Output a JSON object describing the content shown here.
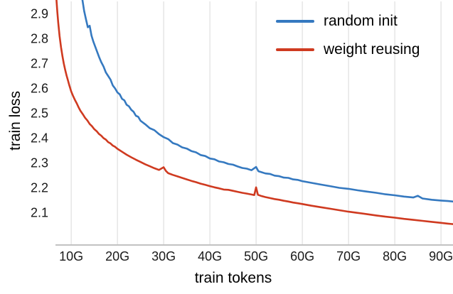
{
  "chart_data": {
    "type": "line",
    "title": "",
    "xlabel": "train tokens",
    "ylabel": "train loss",
    "xlim": [
      6.6,
      92.6
    ],
    "ylim": [
      1.97,
      2.95
    ],
    "grid": "vertical-only",
    "legend_position": "top-right-inside",
    "x_ticks": {
      "values": [
        10,
        20,
        30,
        40,
        50,
        60,
        70,
        80,
        90
      ],
      "labels": [
        "10G",
        "20G",
        "30G",
        "40G",
        "50G",
        "60G",
        "70G",
        "80G",
        "90G"
      ]
    },
    "y_ticks": {
      "values": [
        2.1,
        2.2,
        2.3,
        2.4,
        2.5,
        2.6,
        2.7,
        2.8,
        2.9
      ],
      "labels": [
        "2.1",
        "2.2",
        "2.3",
        "2.4",
        "2.5",
        "2.6",
        "2.7",
        "2.8",
        "2.9"
      ]
    },
    "colors": {
      "grid": "#d9d9d9",
      "axis": "#c2c2c2",
      "tick_text": "#1a1a1a",
      "blue": "#3579c0",
      "red": "#cf3a20"
    },
    "series": [
      {
        "name": "random init",
        "color": "#3579c0",
        "points": [
          [
            12.4,
            2.96
          ],
          [
            12.8,
            2.912
          ],
          [
            13.2,
            2.878
          ],
          [
            13.6,
            2.846
          ],
          [
            14.0,
            2.852
          ],
          [
            14.4,
            2.812
          ],
          [
            14.8,
            2.788
          ],
          [
            15.2,
            2.768
          ],
          [
            15.6,
            2.748
          ],
          [
            16.0,
            2.728
          ],
          [
            16.5,
            2.706
          ],
          [
            17.0,
            2.688
          ],
          [
            17.5,
            2.664
          ],
          [
            18.0,
            2.65
          ],
          [
            18.5,
            2.636
          ],
          [
            19.0,
            2.612
          ],
          [
            19.5,
            2.6
          ],
          [
            20.0,
            2.584
          ],
          [
            20.5,
            2.576
          ],
          [
            21.0,
            2.558
          ],
          [
            21.5,
            2.552
          ],
          [
            22.0,
            2.534
          ],
          [
            22.5,
            2.528
          ],
          [
            23.0,
            2.514
          ],
          [
            23.5,
            2.506
          ],
          [
            24.0,
            2.49
          ],
          [
            24.5,
            2.486
          ],
          [
            25.0,
            2.47
          ],
          [
            26.0,
            2.456
          ],
          [
            27.0,
            2.44
          ],
          [
            28.0,
            2.432
          ],
          [
            29.0,
            2.416
          ],
          [
            30.0,
            2.404
          ],
          [
            31.0,
            2.396
          ],
          [
            32.0,
            2.38
          ],
          [
            33.0,
            2.374
          ],
          [
            34.0,
            2.363
          ],
          [
            35.0,
            2.358
          ],
          [
            36.0,
            2.348
          ],
          [
            37.0,
            2.343
          ],
          [
            38.0,
            2.332
          ],
          [
            39.0,
            2.328
          ],
          [
            40.0,
            2.318
          ],
          [
            41.0,
            2.315
          ],
          [
            42.0,
            2.306
          ],
          [
            43.0,
            2.303
          ],
          [
            44.0,
            2.296
          ],
          [
            45.0,
            2.293
          ],
          [
            46.0,
            2.286
          ],
          [
            47.0,
            2.28
          ],
          [
            48.0,
            2.277
          ],
          [
            49.0,
            2.271
          ],
          [
            50.0,
            2.284
          ],
          [
            50.5,
            2.267
          ],
          [
            51.0,
            2.264
          ],
          [
            52.0,
            2.258
          ],
          [
            53.0,
            2.256
          ],
          [
            54.0,
            2.249
          ],
          [
            55.0,
            2.247
          ],
          [
            56.0,
            2.241
          ],
          [
            57.0,
            2.24
          ],
          [
            58.0,
            2.234
          ],
          [
            59.0,
            2.232
          ],
          [
            60.0,
            2.227
          ],
          [
            62.0,
            2.22
          ],
          [
            64.0,
            2.213
          ],
          [
            66.0,
            2.207
          ],
          [
            68.0,
            2.2
          ],
          [
            70.0,
            2.196
          ],
          [
            72.0,
            2.19
          ],
          [
            74.0,
            2.185
          ],
          [
            76.0,
            2.18
          ],
          [
            78.0,
            2.174
          ],
          [
            80.0,
            2.17
          ],
          [
            82.0,
            2.165
          ],
          [
            84.0,
            2.161
          ],
          [
            85.0,
            2.168
          ],
          [
            86.0,
            2.157
          ],
          [
            88.0,
            2.152
          ],
          [
            90.0,
            2.149
          ],
          [
            91.5,
            2.147
          ],
          [
            92.6,
            2.145
          ]
        ]
      },
      {
        "name": "weight reusing",
        "color": "#cf3a20",
        "points": [
          [
            6.8,
            2.96
          ],
          [
            7.0,
            2.908
          ],
          [
            7.2,
            2.864
          ],
          [
            7.5,
            2.81
          ],
          [
            7.8,
            2.766
          ],
          [
            8.1,
            2.73
          ],
          [
            8.4,
            2.7
          ],
          [
            8.7,
            2.674
          ],
          [
            9.0,
            2.652
          ],
          [
            9.3,
            2.632
          ],
          [
            9.6,
            2.612
          ],
          [
            10.0,
            2.588
          ],
          [
            10.4,
            2.57
          ],
          [
            10.8,
            2.554
          ],
          [
            11.2,
            2.54
          ],
          [
            11.6,
            2.524
          ],
          [
            12.0,
            2.51
          ],
          [
            12.5,
            2.497
          ],
          [
            13.0,
            2.482
          ],
          [
            13.5,
            2.471
          ],
          [
            14.0,
            2.457
          ],
          [
            14.5,
            2.448
          ],
          [
            15.0,
            2.436
          ],
          [
            15.5,
            2.428
          ],
          [
            16.0,
            2.417
          ],
          [
            16.5,
            2.41
          ],
          [
            17.0,
            2.4
          ],
          [
            17.5,
            2.394
          ],
          [
            18.0,
            2.384
          ],
          [
            18.5,
            2.379
          ],
          [
            19.0,
            2.37
          ],
          [
            19.5,
            2.365
          ],
          [
            20.0,
            2.357
          ],
          [
            21.0,
            2.345
          ],
          [
            22.0,
            2.333
          ],
          [
            23.0,
            2.323
          ],
          [
            24.0,
            2.313
          ],
          [
            25.0,
            2.304
          ],
          [
            26.0,
            2.295
          ],
          [
            27.0,
            2.287
          ],
          [
            28.0,
            2.279
          ],
          [
            29.0,
            2.272
          ],
          [
            30.0,
            2.283
          ],
          [
            30.5,
            2.268
          ],
          [
            31.0,
            2.259
          ],
          [
            32.0,
            2.252
          ],
          [
            33.0,
            2.246
          ],
          [
            34.0,
            2.24
          ],
          [
            35.0,
            2.234
          ],
          [
            36.0,
            2.228
          ],
          [
            37.0,
            2.223
          ],
          [
            38.0,
            2.217
          ],
          [
            39.0,
            2.212
          ],
          [
            40.0,
            2.207
          ],
          [
            41.0,
            2.202
          ],
          [
            42.0,
            2.198
          ],
          [
            43.0,
            2.193
          ],
          [
            44.0,
            2.192
          ],
          [
            45.0,
            2.188
          ],
          [
            46.0,
            2.184
          ],
          [
            47.0,
            2.18
          ],
          [
            48.0,
            2.177
          ],
          [
            49.0,
            2.173
          ],
          [
            49.6,
            2.171
          ],
          [
            50.0,
            2.202
          ],
          [
            50.4,
            2.172
          ],
          [
            51.0,
            2.168
          ],
          [
            52.0,
            2.163
          ],
          [
            53.0,
            2.159
          ],
          [
            54.0,
            2.155
          ],
          [
            55.0,
            2.152
          ],
          [
            56.0,
            2.148
          ],
          [
            57.0,
            2.145
          ],
          [
            58.0,
            2.141
          ],
          [
            59.0,
            2.138
          ],
          [
            60.0,
            2.135
          ],
          [
            62.0,
            2.128
          ],
          [
            64.0,
            2.122
          ],
          [
            66.0,
            2.116
          ],
          [
            68.0,
            2.11
          ],
          [
            70.0,
            2.104
          ],
          [
            72.0,
            2.099
          ],
          [
            74.0,
            2.094
          ],
          [
            76.0,
            2.089
          ],
          [
            78.0,
            2.084
          ],
          [
            80.0,
            2.08
          ],
          [
            82.0,
            2.075
          ],
          [
            84.0,
            2.071
          ],
          [
            86.0,
            2.067
          ],
          [
            88.0,
            2.063
          ],
          [
            90.0,
            2.059
          ],
          [
            91.5,
            2.056
          ],
          [
            92.6,
            2.054
          ]
        ]
      }
    ]
  }
}
